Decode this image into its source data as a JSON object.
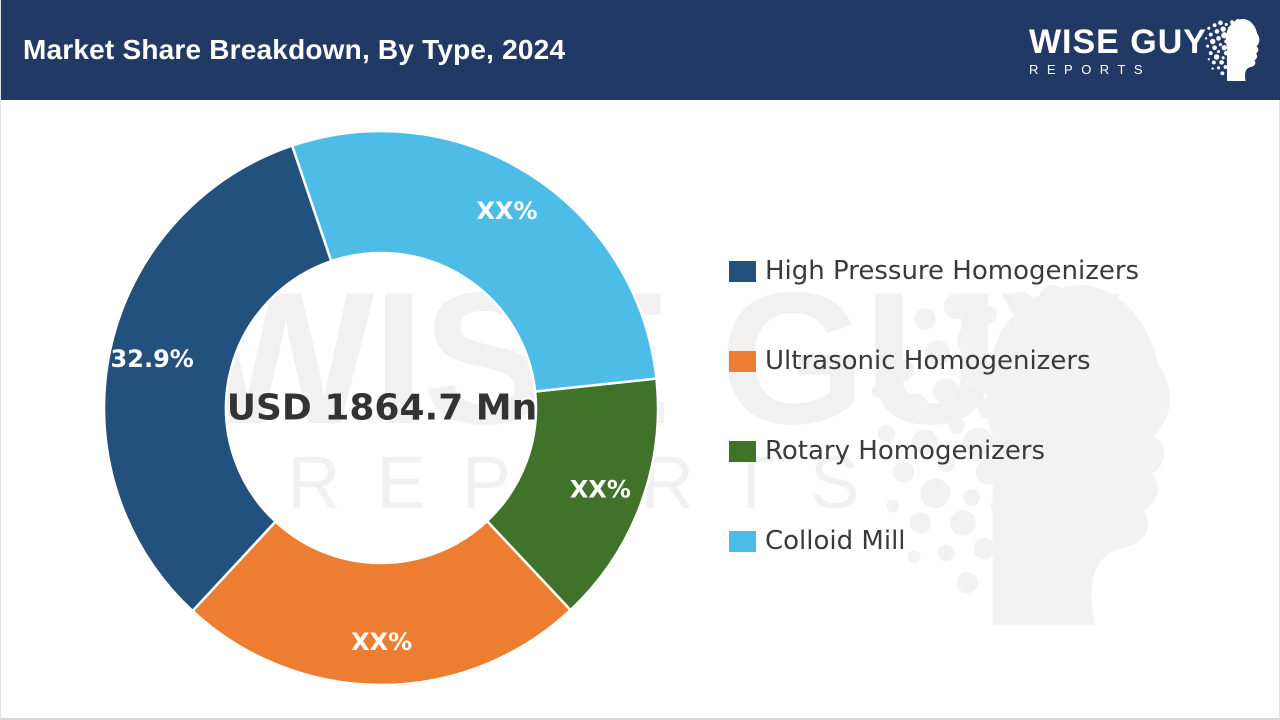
{
  "header": {
    "title": "Market Share Breakdown, By Type, 2024",
    "logo": {
      "line1": "WISE GUY",
      "line2": "REPORTS"
    }
  },
  "watermark": {
    "line1": "WISE GUY",
    "line2": "REPORTS"
  },
  "chart_data": {
    "type": "pie",
    "subtype": "donut",
    "title": "Market Share Breakdown, By Type, 2024",
    "center_label": "USD 1864.7 Mn",
    "start_angle_deg": 108.7,
    "direction": "counterclockwise",
    "inner_radius_ratio": 0.56,
    "legend_position": "right",
    "slices": [
      {
        "label": "High Pressure Homogenizers",
        "value_pct": 32.9,
        "display_label": "32.9%",
        "color": "#22517e"
      },
      {
        "label": "Ultrasonic Homogenizers",
        "value_pct": 23.9,
        "display_label": "XX%",
        "color": "#ed7d31"
      },
      {
        "label": "Rotary Homogenizers",
        "value_pct": 14.7,
        "display_label": "XX%",
        "color": "#41722a"
      },
      {
        "label": "Colloid Mill",
        "value_pct": 28.5,
        "display_label": "XX%",
        "color": "#4dbde8"
      }
    ]
  },
  "colors": {
    "header_bg": "#233965",
    "center_text": "#333333",
    "legend_text": "#3a3a3a",
    "watermark": "#f1f1f2"
  }
}
